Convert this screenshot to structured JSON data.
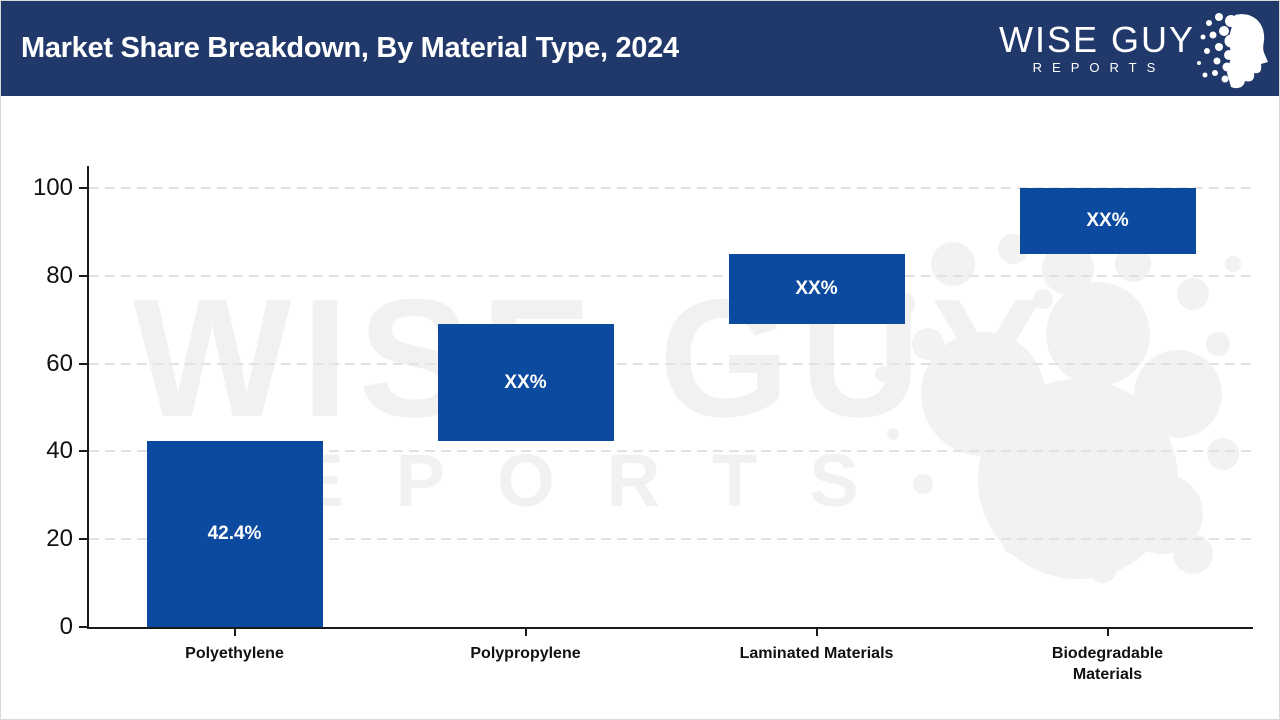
{
  "header": {
    "title": "Market Share Breakdown, By Material Type, 2024",
    "bg_color": "#21386a",
    "logo": {
      "line1": "WISE GUY",
      "line2": "REPORTS"
    }
  },
  "watermark": {
    "line1": "WISE GUY",
    "line2": "REPORTS"
  },
  "chart_data": {
    "type": "bar",
    "subtype": "stacked-waterfall-segments",
    "title": "Market Share Breakdown, By Material Type, 2024",
    "categories": [
      "Polyethylene",
      "Polypropylene",
      "Laminated Materials",
      "Biodegradable Materials"
    ],
    "bars": [
      {
        "category": "Polyethylene",
        "start": 0,
        "end": 42.4,
        "label": "42.4%"
      },
      {
        "category": "Polypropylene",
        "start": 42.4,
        "end": 68.9,
        "label": "XX%"
      },
      {
        "category": "Laminated Materials",
        "start": 68.9,
        "end": 85.0,
        "label": "XX%"
      },
      {
        "category": "Biodegradable Materials",
        "start": 85.0,
        "end": 100.0,
        "label": "XX%"
      }
    ],
    "xlabel": "",
    "ylabel": "",
    "ylim": [
      0,
      105
    ],
    "yticks": [
      0,
      20,
      40,
      60,
      80,
      100
    ],
    "grid": "horizontal-dashed",
    "legend": "none",
    "colors": {
      "bar": "#0c4aa0",
      "axis": "#1a1a1a",
      "gridline": "#e2e2e2",
      "bar_label_text": "#ffffff",
      "watermark": "#f1f1f1"
    }
  }
}
